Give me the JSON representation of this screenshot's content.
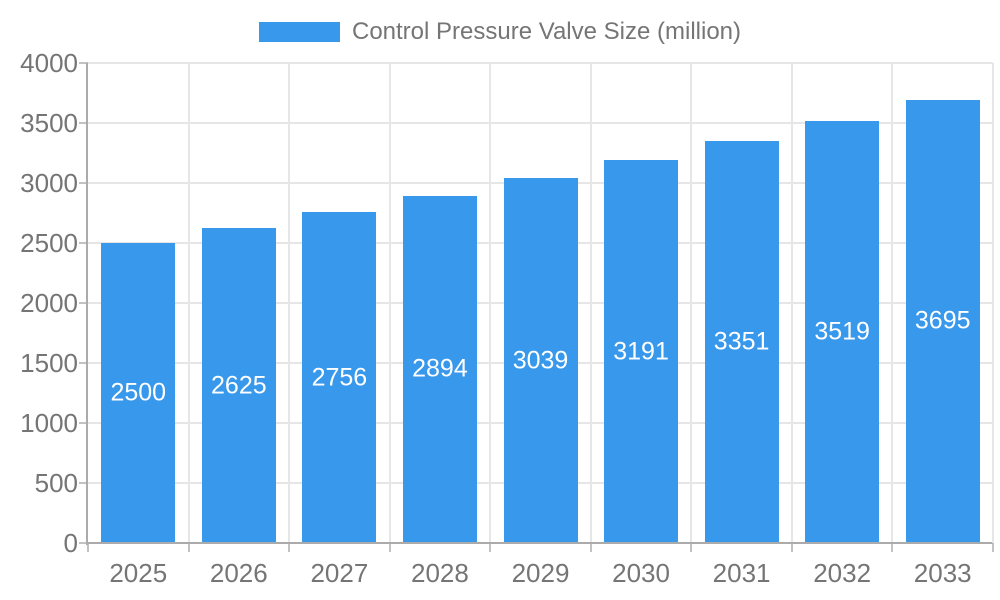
{
  "chart_data": {
    "type": "bar",
    "title": "",
    "legend": {
      "label": "Control Pressure Valve Size (million)",
      "position": "top"
    },
    "categories": [
      "2025",
      "2026",
      "2027",
      "2028",
      "2029",
      "2030",
      "2031",
      "2032",
      "2033"
    ],
    "series": [
      {
        "name": "Control Pressure Valve Size (million)",
        "values": [
          2500,
          2625,
          2756,
          2894,
          3039,
          3191,
          3351,
          3519,
          3695
        ]
      }
    ],
    "bar_value_labels": [
      "2500",
      "2625",
      "2756",
      "2894",
      "3039",
      "3191",
      "3351",
      "3519",
      "3695"
    ],
    "xlabel": "",
    "ylabel": "",
    "ylim": [
      0,
      4000
    ],
    "ytick_step": 500,
    "ytick_labels": [
      "0",
      "500",
      "1000",
      "1500",
      "2000",
      "2500",
      "3000",
      "3500",
      "4000"
    ],
    "grid": true,
    "legend_position": "top",
    "colors": {
      "bar": "#3898EC",
      "bar_label": "#FFFFFF",
      "axis_label": "#757575",
      "legend_text": "#757575",
      "gridline": "#E6E6E6",
      "axis_line": "#ABABAB",
      "tick": "#C2C2C2",
      "background": "#FFFFFF"
    }
  }
}
